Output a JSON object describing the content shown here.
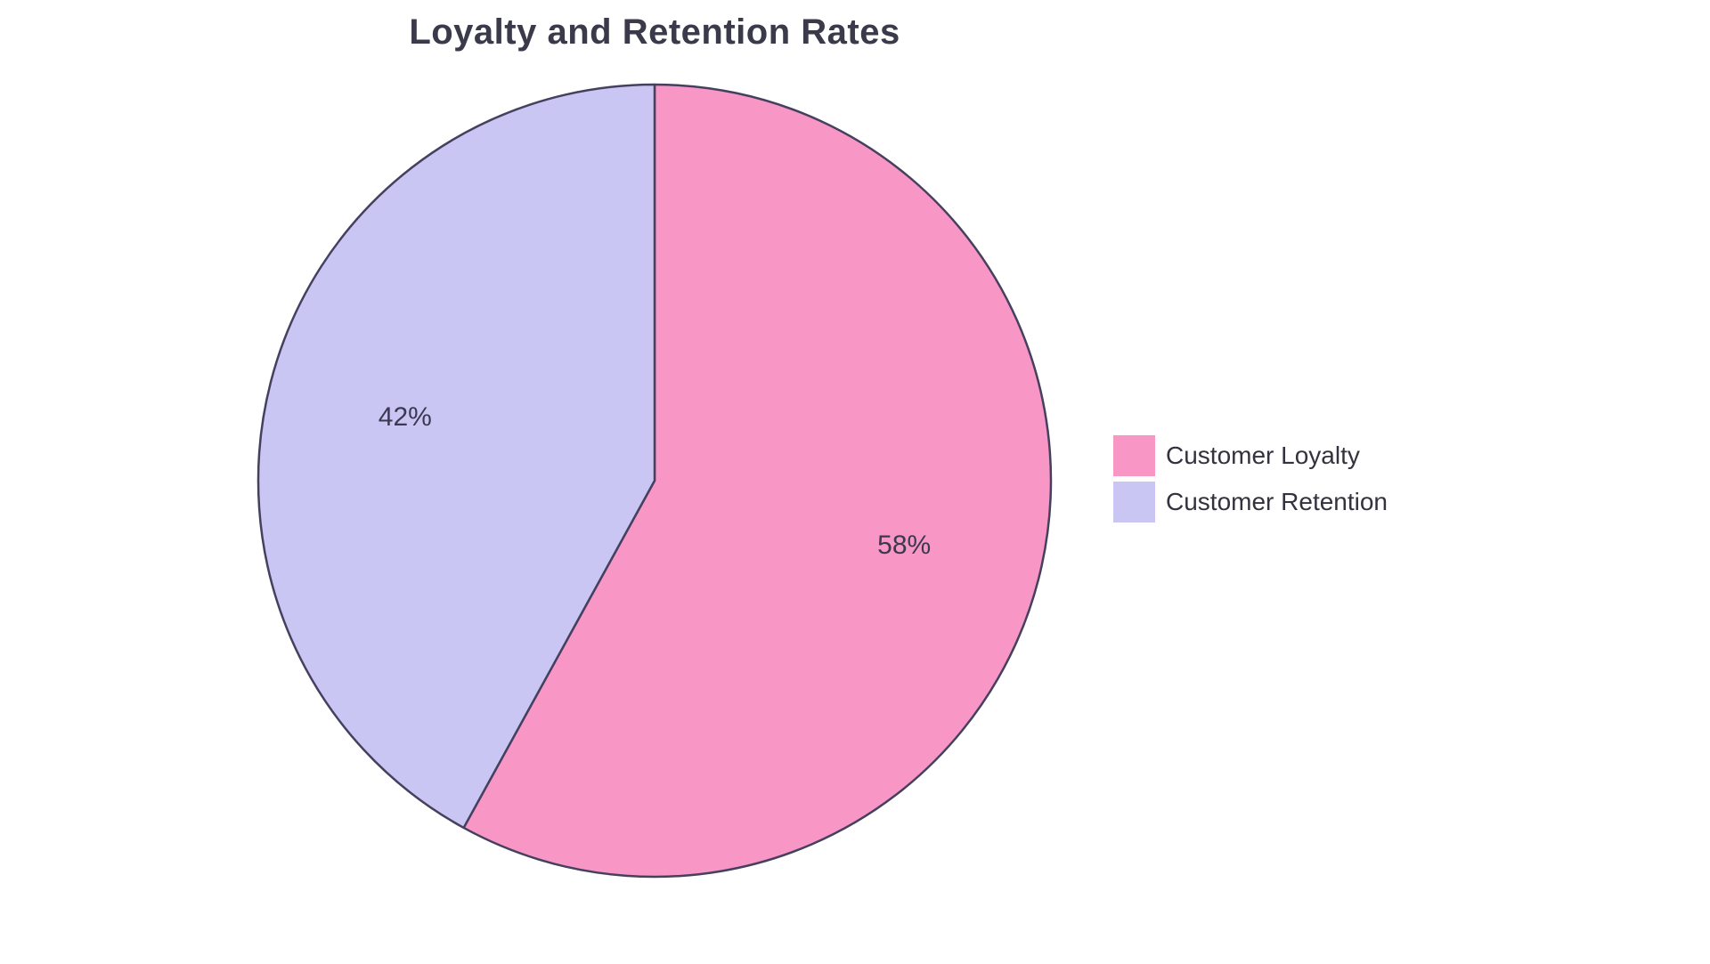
{
  "chart_data": {
    "type": "pie",
    "title": "Loyalty and Retention Rates",
    "series": [
      {
        "label": "Customer Loyalty",
        "value": 58,
        "percent_label": "58%",
        "color": "#F897C6"
      },
      {
        "label": "Customer Retention",
        "value": 42,
        "percent_label": "42%",
        "color": "#C9C6F4"
      }
    ],
    "start_angle_deg": 0,
    "direction": "clockwise",
    "legend_position": "right",
    "slice_border_color": "#46405f",
    "label_color": "#3b3950",
    "background": "#ffffff"
  }
}
